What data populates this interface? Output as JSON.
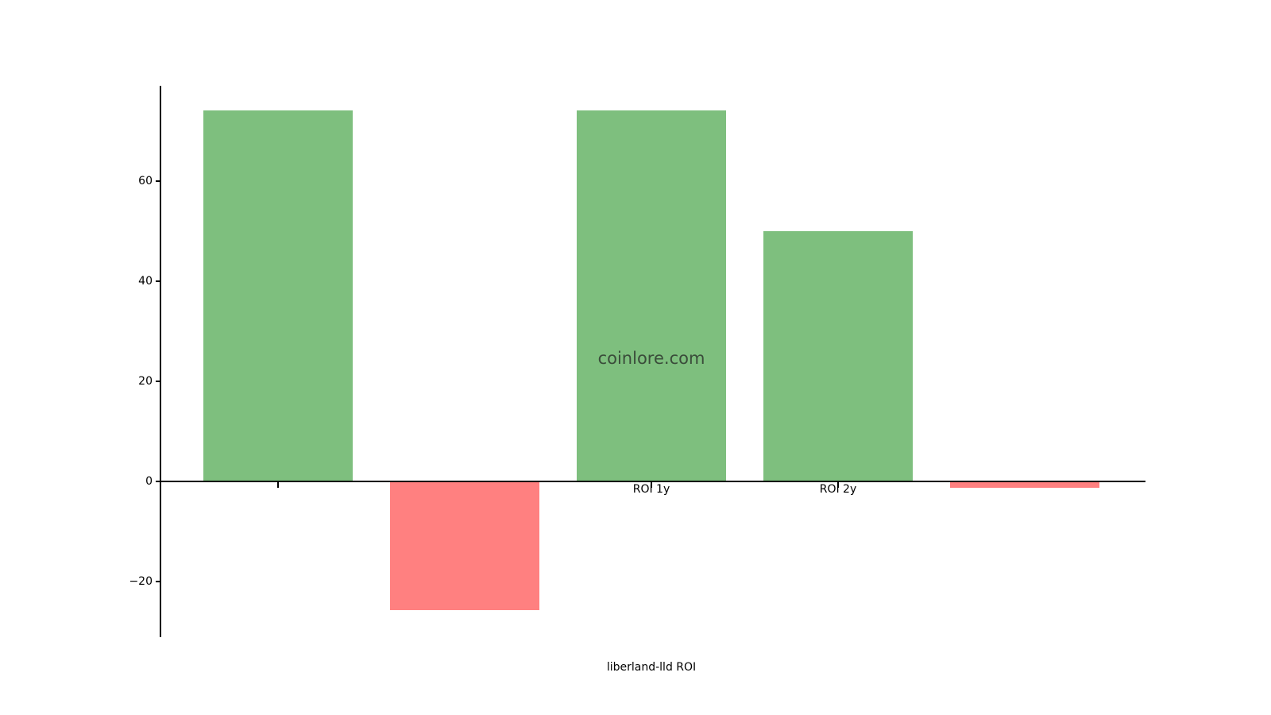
{
  "chart_data": {
    "type": "bar",
    "categories": [
      "",
      "",
      "ROI 1y",
      "ROI 2y",
      ""
    ],
    "values": [
      74.1,
      -25.7,
      74.1,
      50.0,
      -1.2
    ],
    "colors": {
      "positive": "#7ebf7e",
      "negative": "#ff8080"
    },
    "title": "",
    "xlabel": "liberland-lld ROI",
    "ylabel": "",
    "ylim": [
      -31,
      79
    ],
    "yticks": [
      60,
      40,
      20,
      0,
      -20
    ],
    "grid": false,
    "legend": "none",
    "annotations": [
      {
        "text": "coinlore.com",
        "position": "axes-center"
      }
    ]
  }
}
